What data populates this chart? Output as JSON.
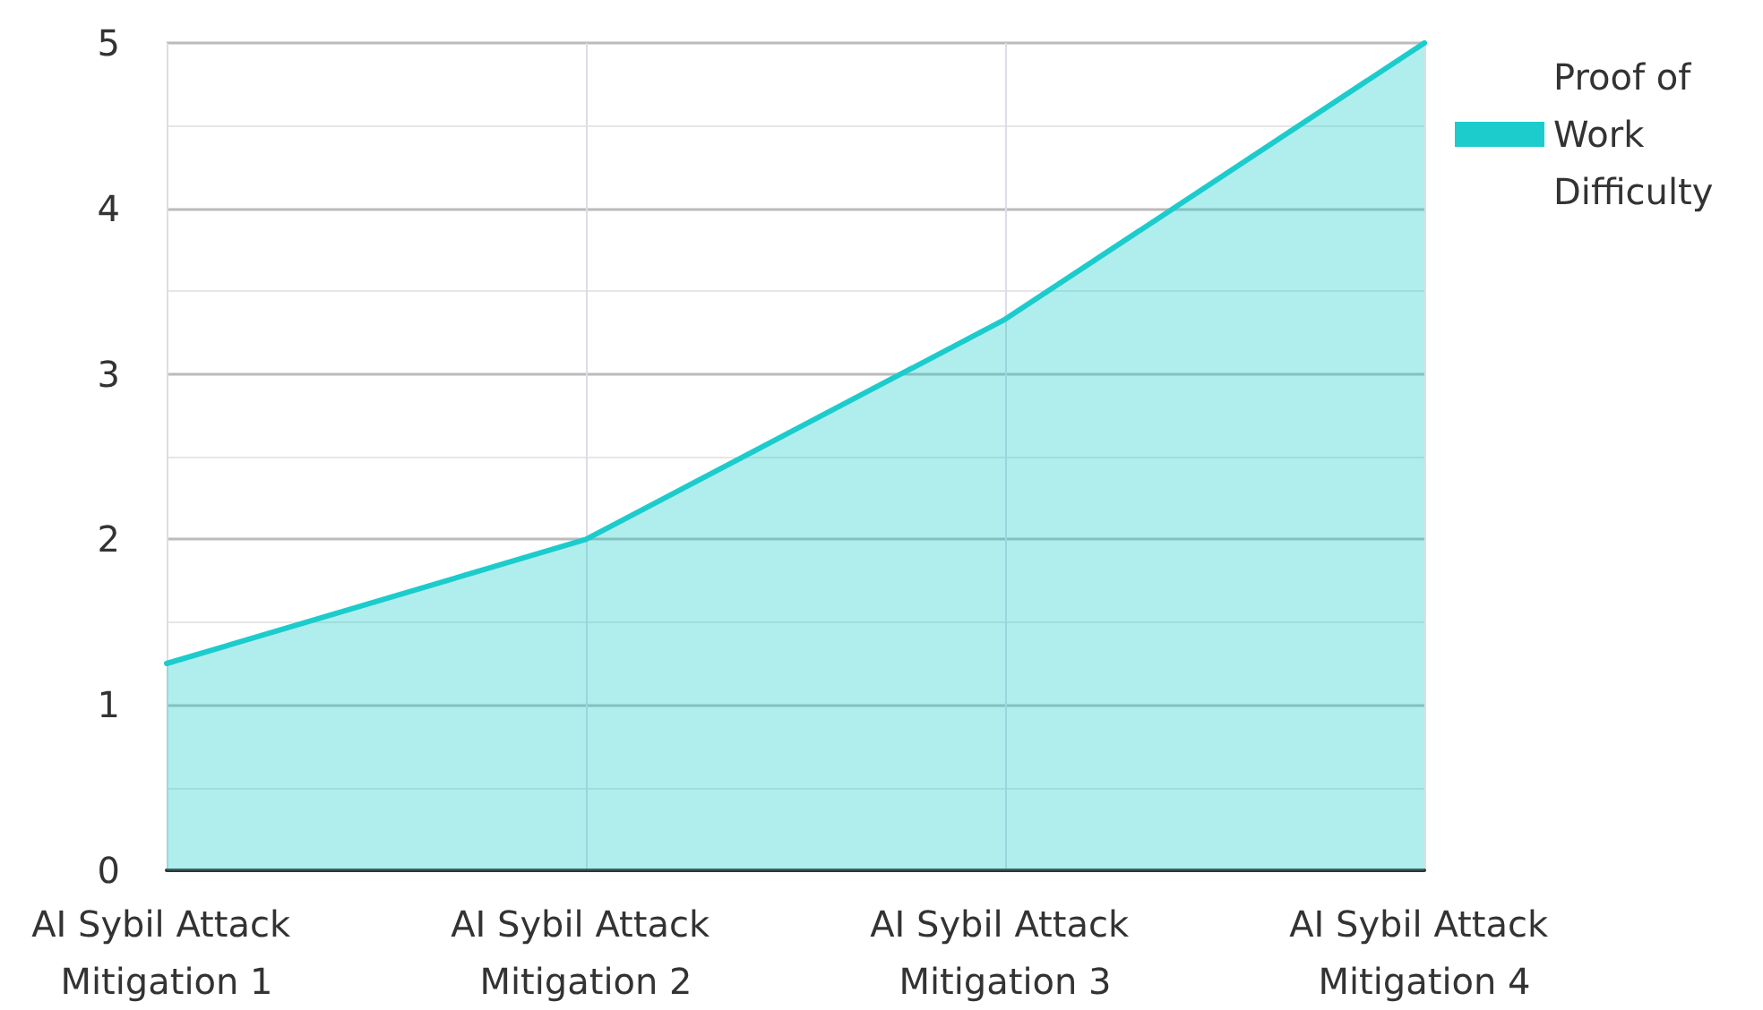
{
  "chart_data": {
    "type": "area",
    "categories": [
      "AI Sybil Attack Mitigation 1",
      "AI Sybil Attack Mitigation 2",
      "AI Sybil Attack Mitigation 3",
      "AI Sybil Attack Mitigation 4"
    ],
    "series": [
      {
        "name": "Proof of Work Difficulty",
        "color": "#1ccccc",
        "values": [
          1.25,
          2,
          3.33,
          5
        ]
      }
    ],
    "ylim": [
      0,
      5
    ],
    "yticks": [
      0,
      1,
      2,
      3,
      4,
      5
    ],
    "grid": true,
    "legend": "top right",
    "marker": "none",
    "line_style": "solid"
  }
}
